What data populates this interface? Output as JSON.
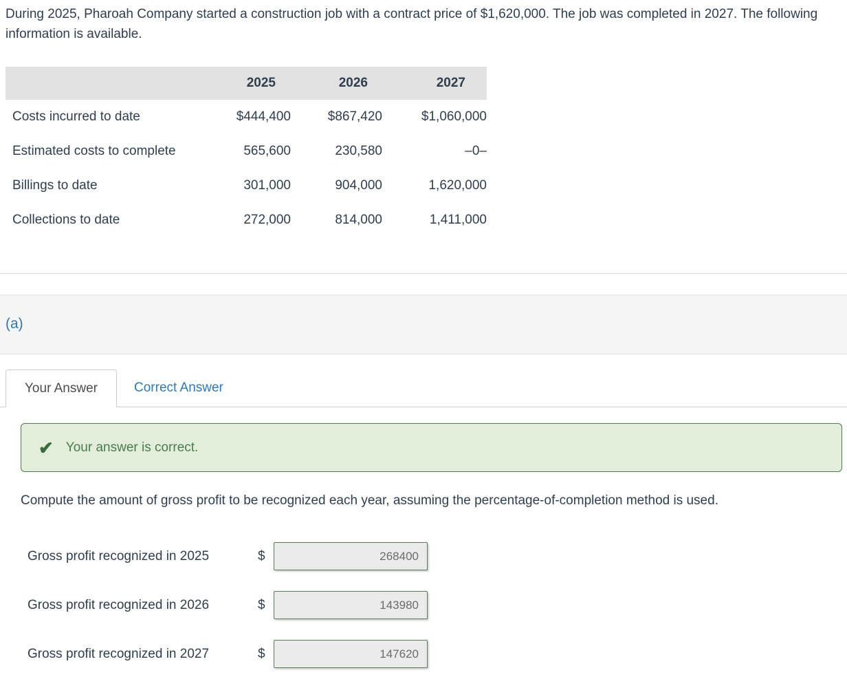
{
  "intro": "During 2025, Pharoah Company started a construction job with a contract price of $1,620,000. The job was completed in 2027. The following information is available.",
  "problem_table": {
    "headers": [
      "2025",
      "2026",
      "2027"
    ],
    "rows": [
      {
        "label": "Costs incurred to date",
        "y2025": "$444,400",
        "y2026": "$867,420",
        "y2027": "$1,060,000"
      },
      {
        "label": "Estimated costs to complete",
        "y2025": "565,600",
        "y2026": "230,580",
        "y2027": "–0–"
      },
      {
        "label": "Billings to date",
        "y2025": "301,000",
        "y2026": "904,000",
        "y2027": "1,620,000"
      },
      {
        "label": "Collections to date",
        "y2025": "272,000",
        "y2026": "814,000",
        "y2027": "1,411,000"
      }
    ]
  },
  "section_label": "(a)",
  "tabs": [
    {
      "label": "Your Answer",
      "active": true
    },
    {
      "label": "Correct Answer",
      "active": false
    }
  ],
  "feedback": {
    "icon": "check-icon",
    "icon_glyph": "✔",
    "message": "Your answer is correct."
  },
  "prompt": "Compute the amount of gross profit to be recognized each year, assuming the percentage-of-completion method is used.",
  "answers": [
    {
      "label": "Gross profit recognized in 2025",
      "currency": "$",
      "value": "268400"
    },
    {
      "label": "Gross profit recognized in 2026",
      "currency": "$",
      "value": "143980"
    },
    {
      "label": "Gross profit recognized in 2027",
      "currency": "$",
      "value": "147620"
    }
  ],
  "colors": {
    "text_dark": "#2f3e4e",
    "accent_blue": "#2f78ad",
    "success_bg": "#e2edda",
    "success_border": "#50794f",
    "success_text": "#4b7c4f",
    "table_header_bg": "#e2e2e2",
    "section_band_bg": "#f5f5f5",
    "input_bg": "#ebebeb"
  }
}
